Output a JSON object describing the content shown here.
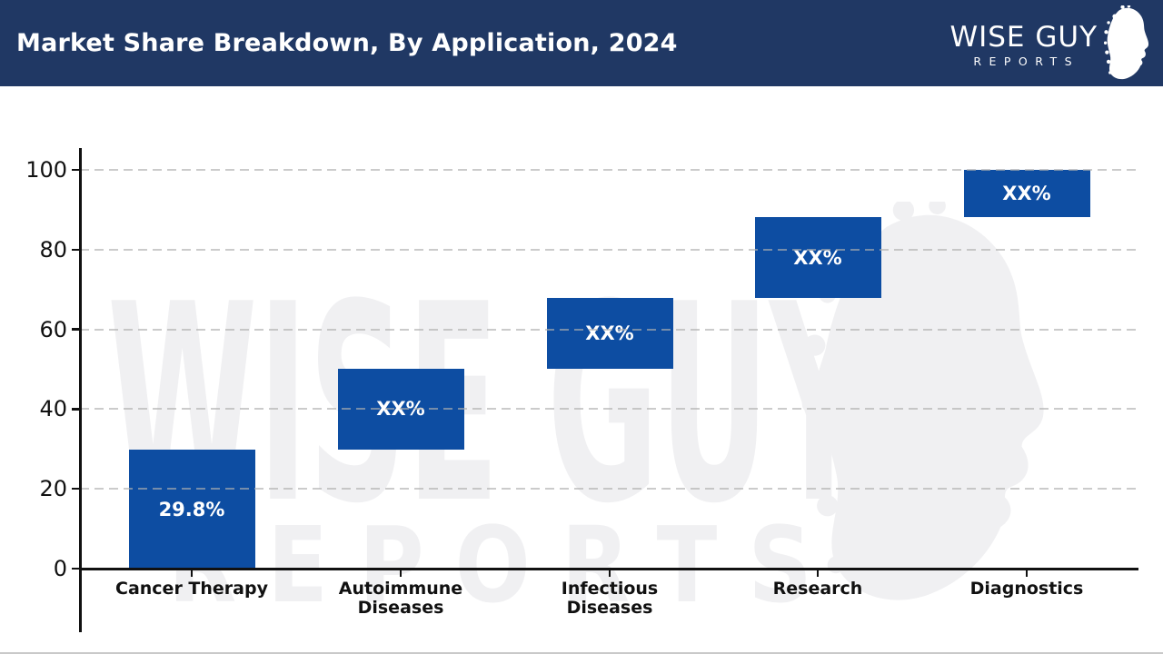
{
  "header": {
    "title": "Market Share Breakdown, By Application, 2024",
    "logo": {
      "brand": "WISE GUY",
      "sub": "REPORTS"
    }
  },
  "watermark": {
    "brand": "WISE GUY",
    "sub": "REPORTS"
  },
  "chart_data": {
    "type": "bar",
    "subtype": "waterfall-floating-bars",
    "title": "Market Share Breakdown, By Application, 2024",
    "categories": [
      "Cancer Therapy",
      "Autoimmune Diseases",
      "Infectious Diseases",
      "Research",
      "Diagnostics"
    ],
    "category_display_lines": [
      [
        "Cancer Therapy"
      ],
      [
        "Autoimmune",
        "Diseases"
      ],
      [
        "Infectious",
        "Diseases"
      ],
      [
        "Research"
      ],
      [
        "Diagnostics"
      ]
    ],
    "segments": [
      {
        "category": "Cancer Therapy",
        "start": 0,
        "end": 29.8,
        "label": "29.8%"
      },
      {
        "category": "Autoimmune Diseases",
        "start": 29.8,
        "end": 50.2,
        "label": "XX%"
      },
      {
        "category": "Infectious Diseases",
        "start": 50.2,
        "end": 67.8,
        "label": "XX%"
      },
      {
        "category": "Research",
        "start": 67.8,
        "end": 88.2,
        "label": "XX%"
      },
      {
        "category": "Diagnostics",
        "start": 88.2,
        "end": 100,
        "label": "XX%"
      }
    ],
    "y_ticks": [
      0,
      20,
      40,
      60,
      80,
      100
    ],
    "ylim": [
      0,
      105
    ],
    "xlabel": "",
    "ylabel": "",
    "legend": null,
    "grid": "horizontal-dashed",
    "colors": {
      "bar": "#0d4da2",
      "header_bg": "#203864",
      "grid_dash": "#cccccc",
      "axis": "#111111",
      "bar_label": "#ffffff",
      "watermark": "#f0f0f2"
    }
  }
}
